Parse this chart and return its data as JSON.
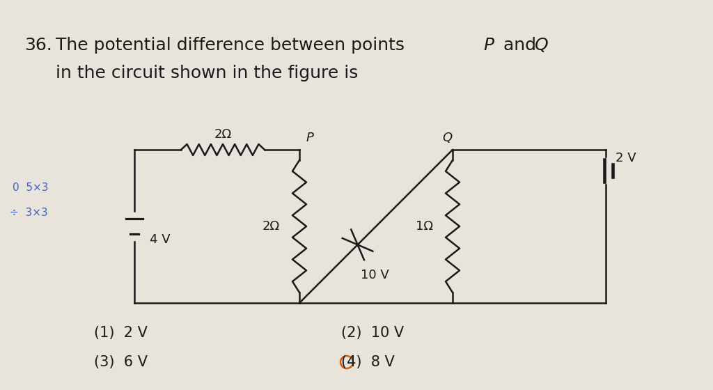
{
  "bg_color": "#e8e4dc",
  "text_color": "#1a1a1a",
  "options": [
    "(1)  2 V",
    "(2)  10 V",
    "(3)  6 V",
    "(4)  8 V"
  ],
  "circuit_labels": {
    "two_ohm_top": "2Ω",
    "two_ohm_side": "2Ω",
    "one_ohm": "1Ω",
    "battery_left": "4 V",
    "battery_right": "2 V",
    "battery_mid": "10 V",
    "point_P": "P",
    "point_Q": "Q"
  },
  "lw": 1.8
}
